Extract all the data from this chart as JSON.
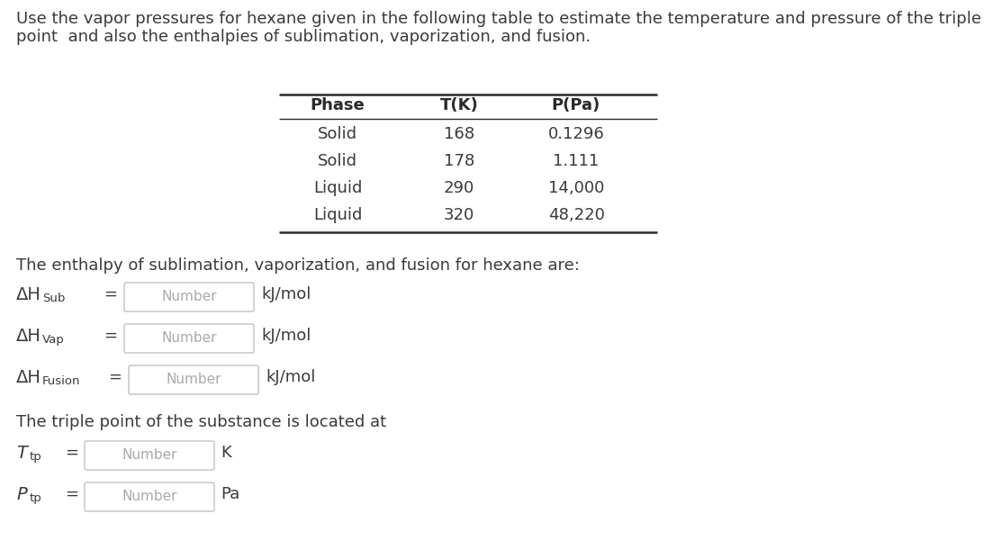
{
  "title_line1": "Use the vapor pressures for hexane given in the following table to estimate the temperature and pressure of the triple",
  "title_line2": "point  and also the enthalpies of sublimation, vaporization, and fusion.",
  "table_headers": [
    "Phase",
    "T(K)",
    "P(Pa)"
  ],
  "table_rows": [
    [
      "Solid",
      "168",
      "0.1296"
    ],
    [
      "Solid",
      "178",
      "1.111"
    ],
    [
      "Liquid",
      "290",
      "14,000"
    ],
    [
      "Liquid",
      "320",
      "48,220"
    ]
  ],
  "enthalpy_label": "The enthalpy of sublimation, vaporization, and fusion for hexane are:",
  "units_kj": "kJ/mol",
  "triple_point_label": "The triple point of the substance is located at",
  "input_placeholder": "Number",
  "bg_color": "#ffffff",
  "text_color": "#3a3a3a",
  "placeholder_color": "#aaaaaa",
  "border_color": "#bbbbbb",
  "table_header_color": "#2a2a2a",
  "font_size": 13.0,
  "font_size_sub": 9.5,
  "font_size_placeholder": 11.0
}
